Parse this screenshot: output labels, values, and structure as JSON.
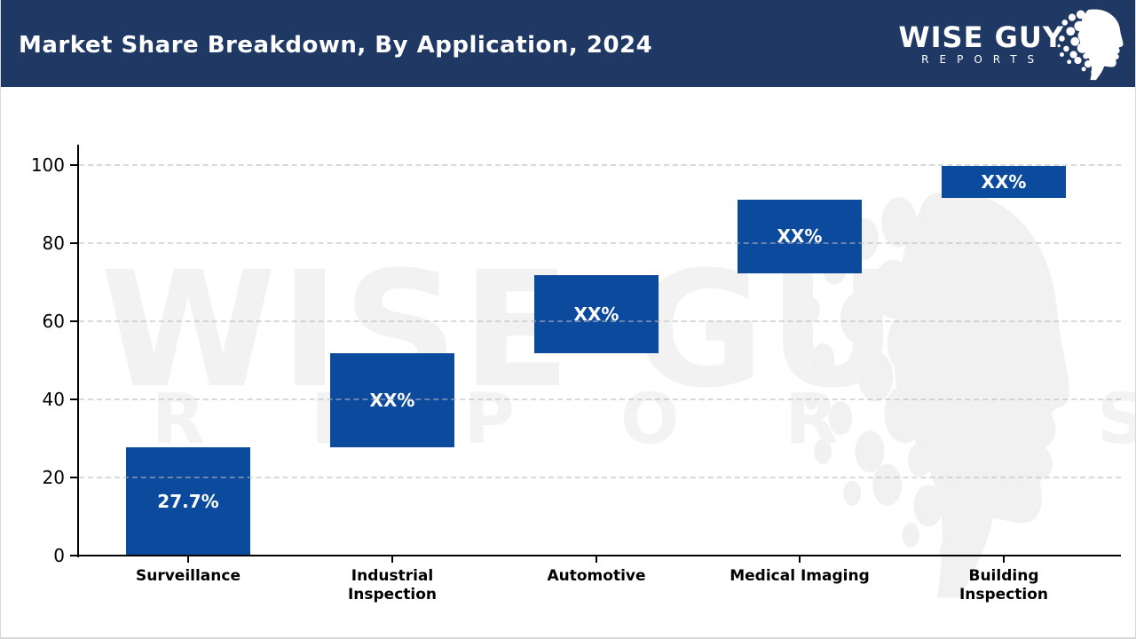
{
  "header": {
    "title": "Market Share Breakdown, By Application, 2024",
    "bg_color": "#1f3864",
    "logo": {
      "name": "WISE GUY",
      "sub": "REPORTS",
      "icon": "dotted-head-profile"
    }
  },
  "watermark": {
    "line1": "WISE GUY",
    "line2": "R E P O R T S"
  },
  "chart_data": {
    "type": "bar",
    "variant": "waterfall",
    "title": "Market Share Breakdown, By Application, 2024",
    "xlabel": "",
    "ylabel": "",
    "ylim": [
      0,
      105
    ],
    "yticks": [
      0,
      20,
      40,
      60,
      80,
      100
    ],
    "grid": "horizontal-dashed",
    "legend": "none",
    "bar_color": "#0c4a9e",
    "bar_label_color": "#ffffff",
    "categories": [
      "Surveillance",
      "Industrial Inspection",
      "Automotive",
      "Medical Imaging",
      "Building Inspection"
    ],
    "category_label_lines": [
      [
        "Surveillance"
      ],
      [
        "Industrial",
        "Inspection"
      ],
      [
        "Automotive"
      ],
      [
        "Medical Imaging"
      ],
      [
        "Building",
        "Inspection"
      ]
    ],
    "segments": [
      {
        "category": "Surveillance",
        "start": 0,
        "end": 27.7,
        "label": "27.7%"
      },
      {
        "category": "Industrial Inspection",
        "start": 27.7,
        "end": 51.8,
        "label": "XX%"
      },
      {
        "category": "Automotive",
        "start": 51.8,
        "end": 71.8,
        "label": "XX%"
      },
      {
        "category": "Medical Imaging",
        "start": 72.3,
        "end": 91.2,
        "label": "XX%"
      },
      {
        "category": "Building Inspection",
        "start": 91.5,
        "end": 99.8,
        "label": "XX%"
      }
    ]
  }
}
